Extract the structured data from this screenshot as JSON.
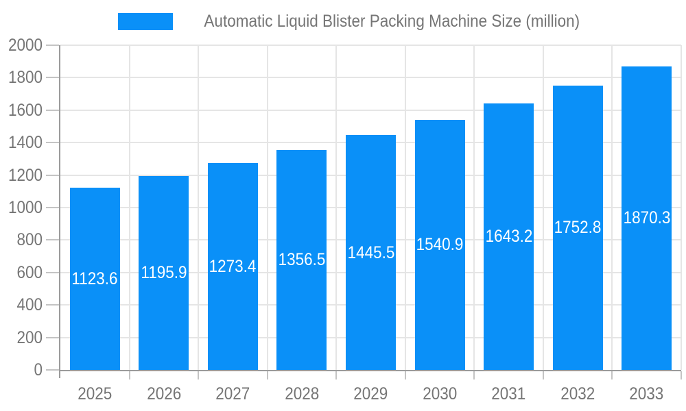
{
  "legend": {
    "label": "Automatic Liquid Blister Packing Machine Size (million)"
  },
  "chart_data": {
    "type": "bar",
    "title": "Automatic Liquid Blister Packing Machine Size (million)",
    "categories": [
      "2025",
      "2026",
      "2027",
      "2028",
      "2029",
      "2030",
      "2031",
      "2032",
      "2033"
    ],
    "values": [
      1123.6,
      1195.9,
      1273.4,
      1356.5,
      1445.5,
      1540.9,
      1643.2,
      1752.8,
      1870.3
    ],
    "xlabel": "",
    "ylabel": "",
    "ylim": [
      0,
      2000
    ],
    "yticks": [
      0,
      200,
      400,
      600,
      800,
      1000,
      1200,
      1400,
      1600,
      1800,
      2000
    ],
    "grid": true,
    "legend_position": "top-center",
    "value_labels": "inside-middle",
    "colors": {
      "bar": "#0a90f8",
      "value_label": "#ffffff",
      "axis": "#9b9b9b",
      "grid": "#e5e5e5",
      "tick": "#c4c4c4",
      "text": "#757575",
      "background": "#ffffff"
    }
  }
}
